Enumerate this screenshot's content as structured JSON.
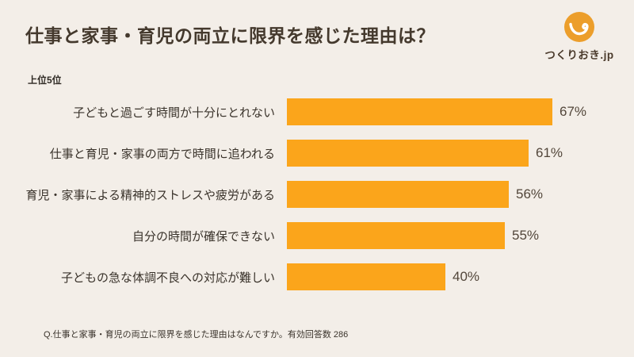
{
  "page": {
    "title": "仕事と家事・育児の両立に限界を感じた理由は？",
    "rank_label": "上位5位",
    "footnote": "Q.仕事と家事・育児の両立に限界を感じた理由はなんですか。有効回答数 286"
  },
  "logo": {
    "text": "つくりおき.jp",
    "icon": "smile-logo-icon",
    "icon_color": "#EC9E2B"
  },
  "colors": {
    "background": "#F3EEE8",
    "bar": "#FBA51B",
    "title_text": "#44392D",
    "label_text": "#3A332B",
    "value_text": "#52463A"
  },
  "chart_data": {
    "type": "bar",
    "orientation": "horizontal",
    "title": "仕事と家事・育児の両立に限界を感じた理由は？",
    "subtitle": "上位5位",
    "categories": [
      "子どもと過ごす時間が十分にとれない",
      "仕事と育児・家事の両方で時間に追われる",
      "育児・家事による精神的ストレスや疲労がある",
      "自分の時間が確保できない",
      "子どもの急な体調不良への対応が難しい"
    ],
    "values": [
      67,
      61,
      56,
      55,
      40
    ],
    "value_labels": [
      "67%",
      "61%",
      "56%",
      "55%",
      "40%"
    ],
    "unit": "%",
    "xlim": [
      0,
      100
    ],
    "bar_color": "#FBA51B",
    "grid": false,
    "legend": false,
    "source_note": "Q.仕事と家事・育児の両立に限界を感じた理由はなんですか。有効回答数 286"
  }
}
